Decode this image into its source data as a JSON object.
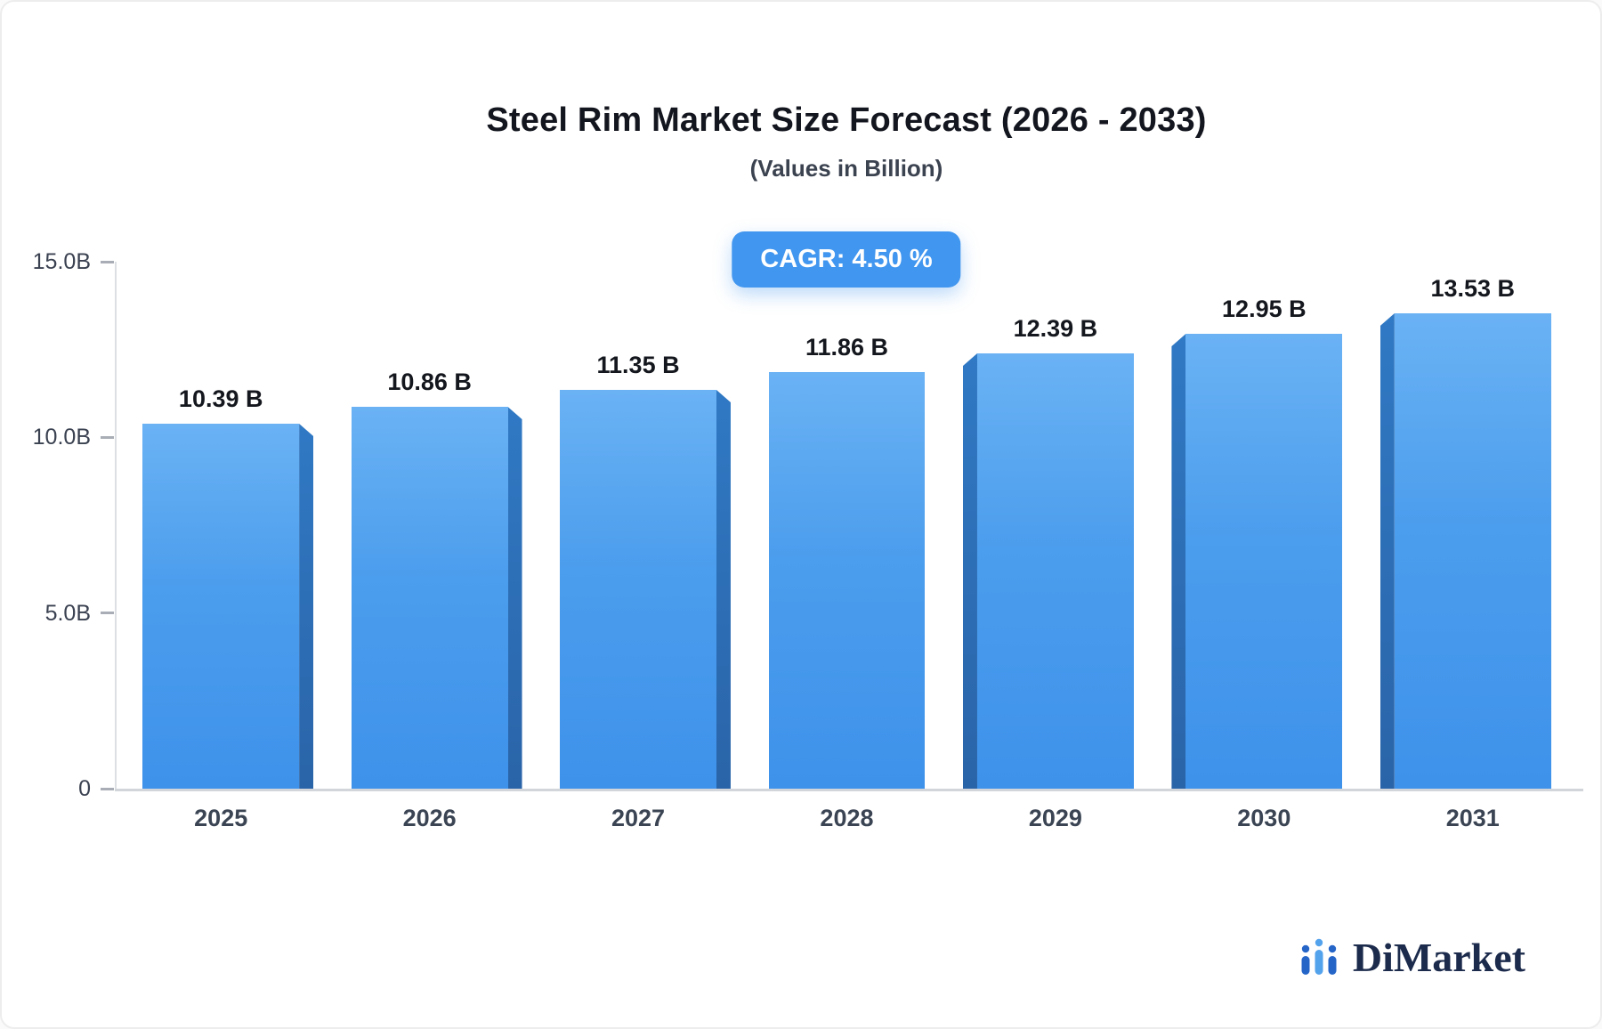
{
  "chart_data": {
    "type": "bar",
    "title": "Steel Rim Market Size Forecast (2026 - 2033)",
    "subtitle": "(Values in Billion)",
    "annotation": "CAGR: 4.50 %",
    "categories": [
      "2025",
      "2026",
      "2027",
      "2028",
      "2029",
      "2030",
      "2031"
    ],
    "values": [
      10.39,
      10.86,
      11.35,
      11.86,
      12.39,
      12.95,
      13.53
    ],
    "value_labels": [
      "10.39 B",
      "10.86 B",
      "11.35 B",
      "11.86 B",
      "12.39 B",
      "12.95 B",
      "13.53 B"
    ],
    "unit": "Billion",
    "xlabel": "",
    "ylabel": "",
    "ylim": [
      0,
      15
    ],
    "yticks": [
      {
        "value": 15,
        "label": "15.0B"
      },
      {
        "value": 10,
        "label": "10.0B"
      },
      {
        "value": 5,
        "label": "5.0B"
      },
      {
        "value": 0,
        "label": "0"
      }
    ],
    "grid": false,
    "legend": "none",
    "colors": {
      "bar_top": "#6ab2f4",
      "bar_bottom": "#3e92ea",
      "bar_side": "#2b68ac",
      "badge_bg": "#4196ef",
      "axis": "#d7dade",
      "value_text": "#14171d",
      "tick_text": "#3a4453"
    }
  },
  "branding": {
    "logo_text": "DiMarket"
  }
}
